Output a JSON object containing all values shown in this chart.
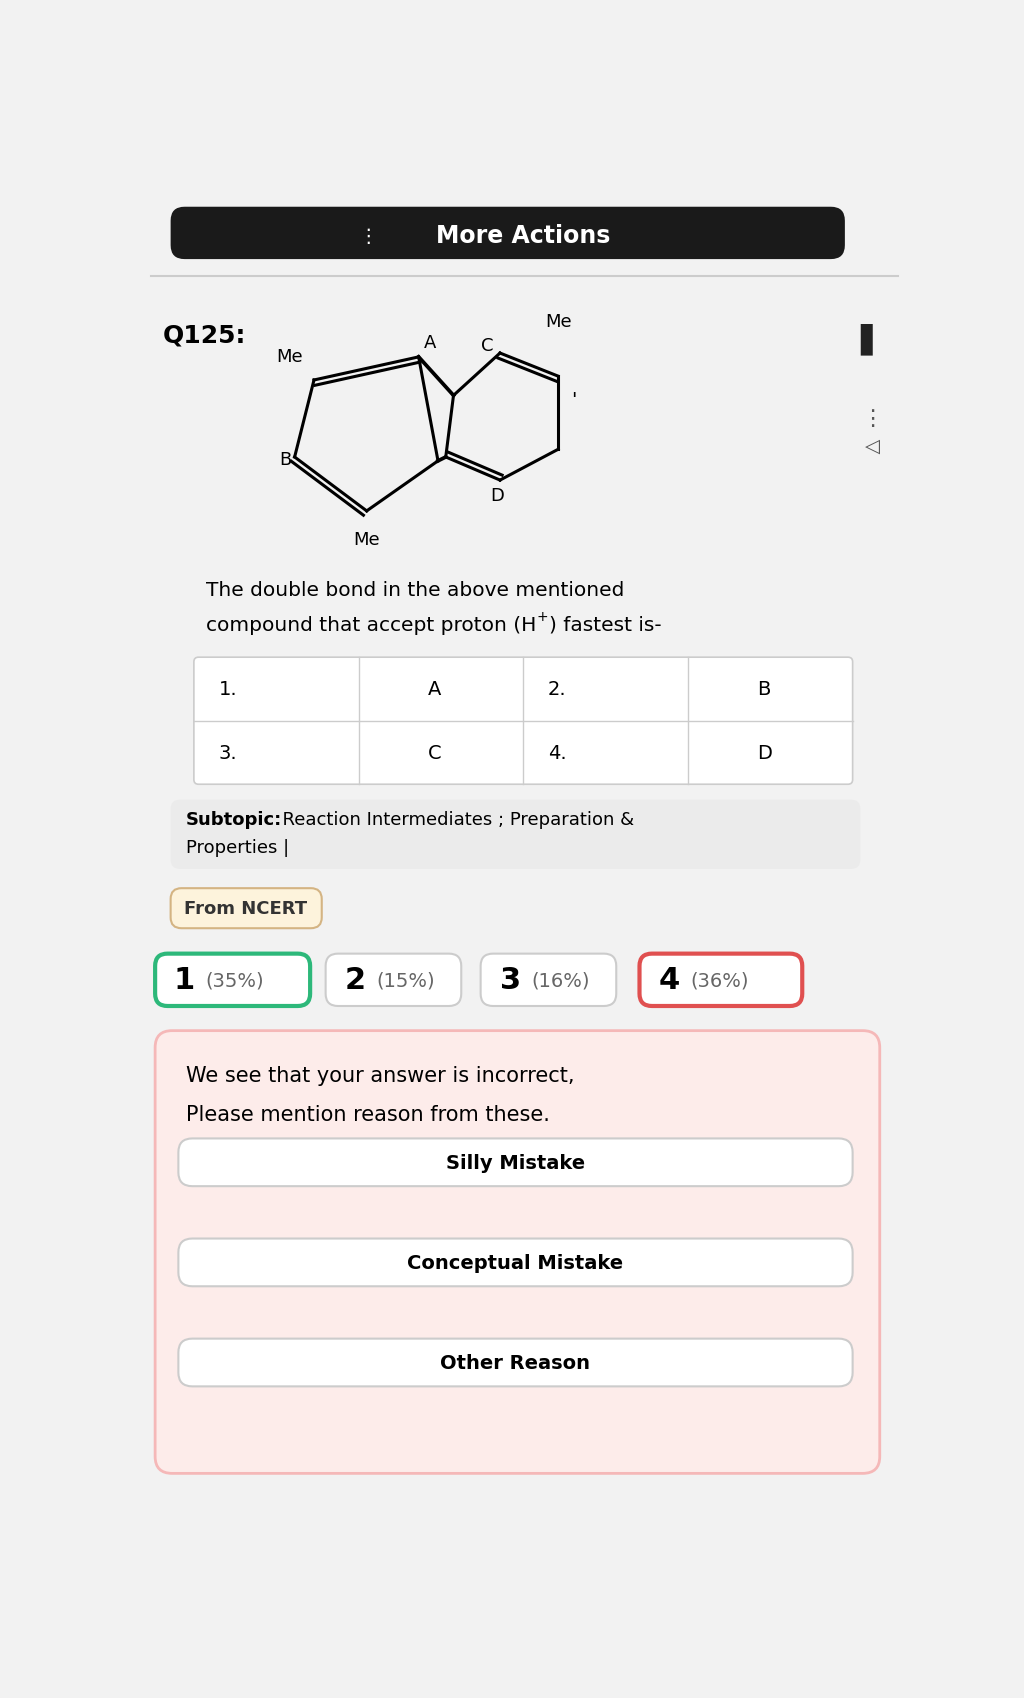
{
  "bg_color": "#f2f2f2",
  "white": "#ffffff",
  "black": "#000000",
  "header_bg": "#1a1a1a",
  "header_text": "More Actions",
  "question_label": "Q125:",
  "subtopic_bold": "Subtopic:",
  "subtopic_rest": "  Reaction Intermediates ; Preparation &",
  "subtopic_line2": "Properties |",
  "ncert_text": "From NCERT",
  "ncert_bg": "#fdf3dc",
  "ncert_border": "#d4b483",
  "answer_labels": [
    "1",
    "2",
    "3",
    "4"
  ],
  "answer_pcts": [
    "(35%)",
    "(15%)",
    "(16%)",
    "(36%)"
  ],
  "green_border": "#2db87a",
  "red_border": "#e05050",
  "incorrect_bg": "#fdecea",
  "incorrect_border": "#f5b8b8",
  "incorrect_text1": "We see that your answer is incorrect,",
  "incorrect_text2": "Please mention reason from these.",
  "buttons": [
    "Silly Mistake",
    "Conceptual Mistake",
    "Other Reason"
  ],
  "separator_color": "#cccccc",
  "subtopic_bg": "#ebebeb"
}
